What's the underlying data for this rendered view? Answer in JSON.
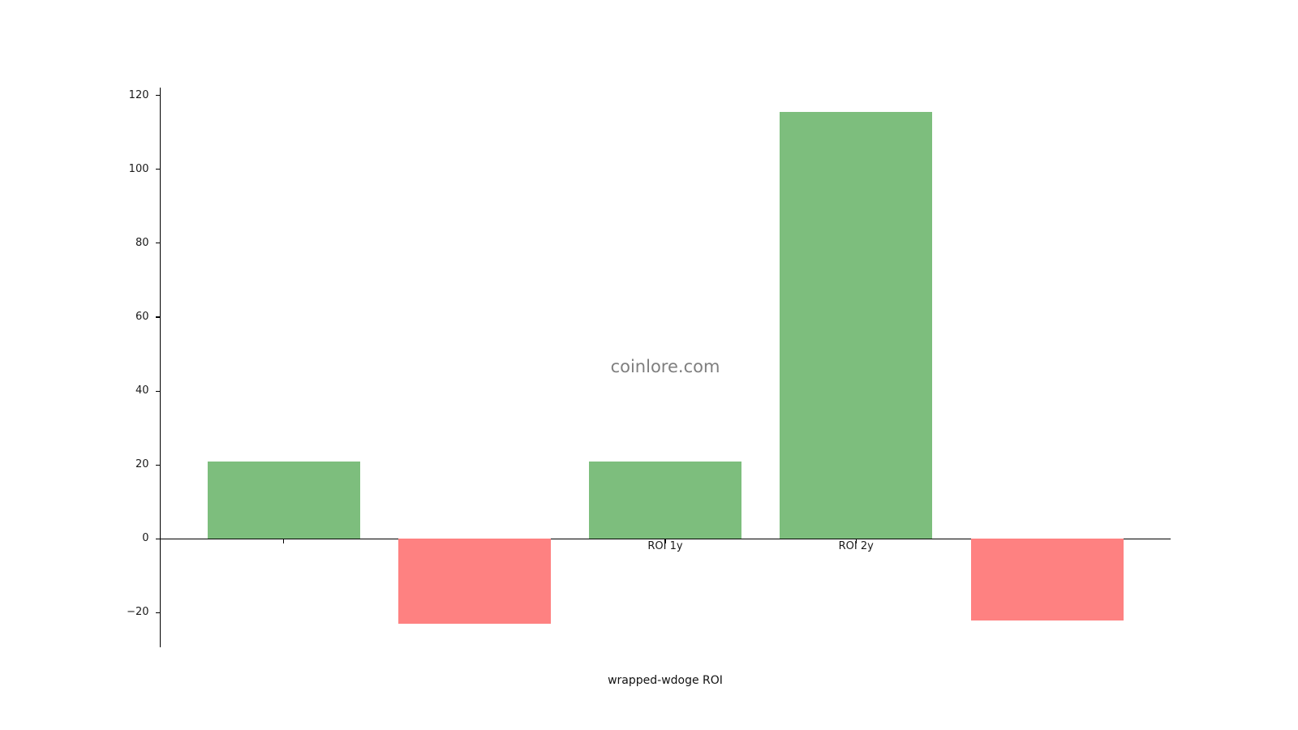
{
  "page": {
    "background": "#ffffff"
  },
  "watermark": {
    "text": "coinlore.com",
    "color": "#7f7f7f"
  },
  "chart_data": {
    "type": "bar",
    "title": "wrapped-wdoge ROI",
    "title_position": "bottom-center",
    "categories": [
      "",
      "",
      "ROI 1y",
      "ROI 2y",
      ""
    ],
    "values": [
      21,
      -23,
      21,
      115.5,
      -22
    ],
    "series": [
      {
        "name": "wrapped-wdoge ROI",
        "values": [
          21,
          -23,
          21,
          115.5,
          -22
        ]
      }
    ],
    "bar_color_positive": "#7dbe7d",
    "bar_color_negative": "#fe8181",
    "axis_color": "#000000",
    "tick_label_color": "#1a1a1a",
    "yticks": [
      120,
      100,
      80,
      60,
      40,
      20,
      0,
      -20
    ],
    "ylim": [
      -29.5,
      122.2
    ],
    "grid": false,
    "legend": "none",
    "baseline": 0,
    "annotations": [
      "coinlore.com"
    ]
  }
}
